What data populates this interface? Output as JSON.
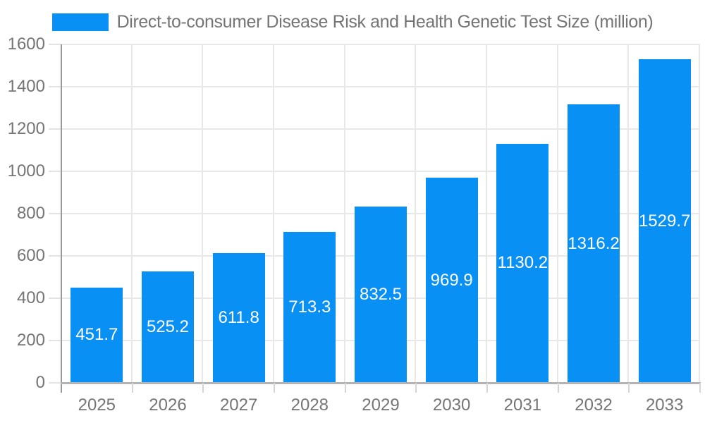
{
  "chart_data": {
    "type": "bar",
    "title": "Direct-to-consumer Disease Risk and Health Genetic Test Size (million)",
    "categories": [
      "2025",
      "2026",
      "2027",
      "2028",
      "2029",
      "2030",
      "2031",
      "2032",
      "2033"
    ],
    "values": [
      451.7,
      525.2,
      611.8,
      713.3,
      832.5,
      969.9,
      1130.2,
      1316.2,
      1529.7
    ],
    "xlabel": "",
    "ylabel": "",
    "ylim": [
      0,
      1600
    ],
    "yticks": [
      0,
      200,
      400,
      600,
      800,
      1000,
      1200,
      1400,
      1600
    ],
    "grid": true,
    "legend_position": "top",
    "colors": {
      "bar": "#0990F5",
      "bar_label": "#FFFFFF",
      "axis_text": "#757575",
      "grid_line": "#E8E8E8",
      "x_axis_line": "#B3B3B3",
      "y_axis_line": "#999999"
    }
  }
}
